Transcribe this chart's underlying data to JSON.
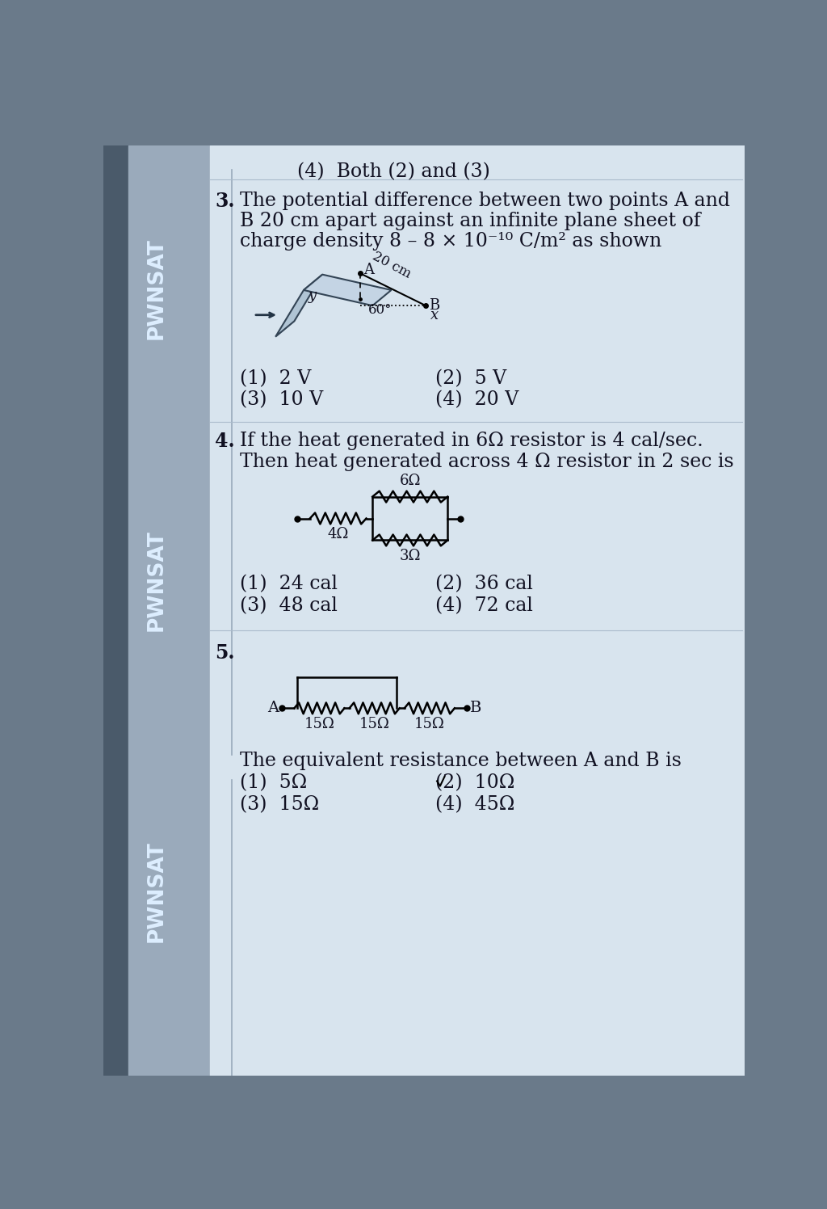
{
  "bg_outer": "#6a7a8a",
  "bg_sidebar": "#9aaabb",
  "bg_page": "#d8e4ee",
  "text_color": "#111122",
  "prev_option": "(4)  Both (2) and (3)",
  "q3_num": "3.",
  "q3_line1": "The potential difference between two points A and",
  "q3_line2": "B 20 cm apart against an infinite plane sheet of",
  "q3_line3": "charge density 8 – 8 × 10⁻¹⁰ C/m² as shown",
  "q3_opts": [
    "(1)  2 V",
    "(2)  5 V",
    "(3)  10 V",
    "(4)  20 V"
  ],
  "q4_num": "4.",
  "q4_line1": "If the heat generated in 6Ω resistor is 4 cal/sec.",
  "q4_line2": "Then heat generated across 4 Ω resistor in 2 sec is",
  "q4_opts": [
    "(1)  24 cal",
    "(2)  36 cal",
    "(3)  48 cal",
    "(4)  72 cal"
  ],
  "q5_num": "5.",
  "q5_text": "The equivalent resistance between A and B is",
  "q5_opts": [
    "(1)  5Ω",
    "(2)  10Ω",
    "(3)  15Ω",
    "(4)  45Ω"
  ],
  "pwnsat": "PWNSAT",
  "fs_main": 17,
  "fs_diagram": 13
}
